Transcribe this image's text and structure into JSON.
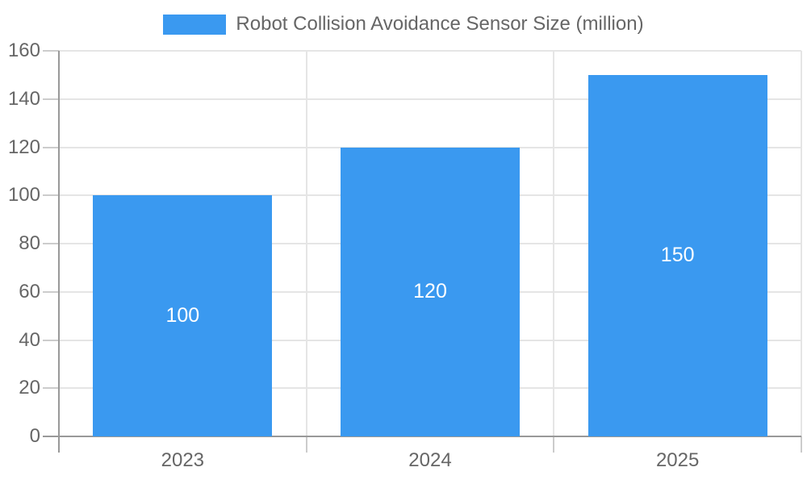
{
  "chart_data": {
    "type": "bar",
    "title": "Robot Collision Avoidance Sensor Size (million)",
    "categories": [
      "2023",
      "2024",
      "2025"
    ],
    "values": [
      100,
      120,
      150
    ],
    "data_labels": [
      "100",
      "120",
      "150"
    ],
    "xlabel": "",
    "ylabel": "",
    "ylim": [
      0,
      160
    ],
    "yticks": [
      0,
      20,
      40,
      60,
      80,
      100,
      120,
      140,
      160
    ],
    "grid": true,
    "legend_position": "top",
    "data_label_position": "center-inside"
  },
  "colors": {
    "bar": "#3A99F0",
    "bar_label": "#ffffff",
    "axis": "#999999",
    "grid": "#e5e5e5",
    "tick": "#cccccc",
    "text": "#666666",
    "background": "#ffffff"
  }
}
